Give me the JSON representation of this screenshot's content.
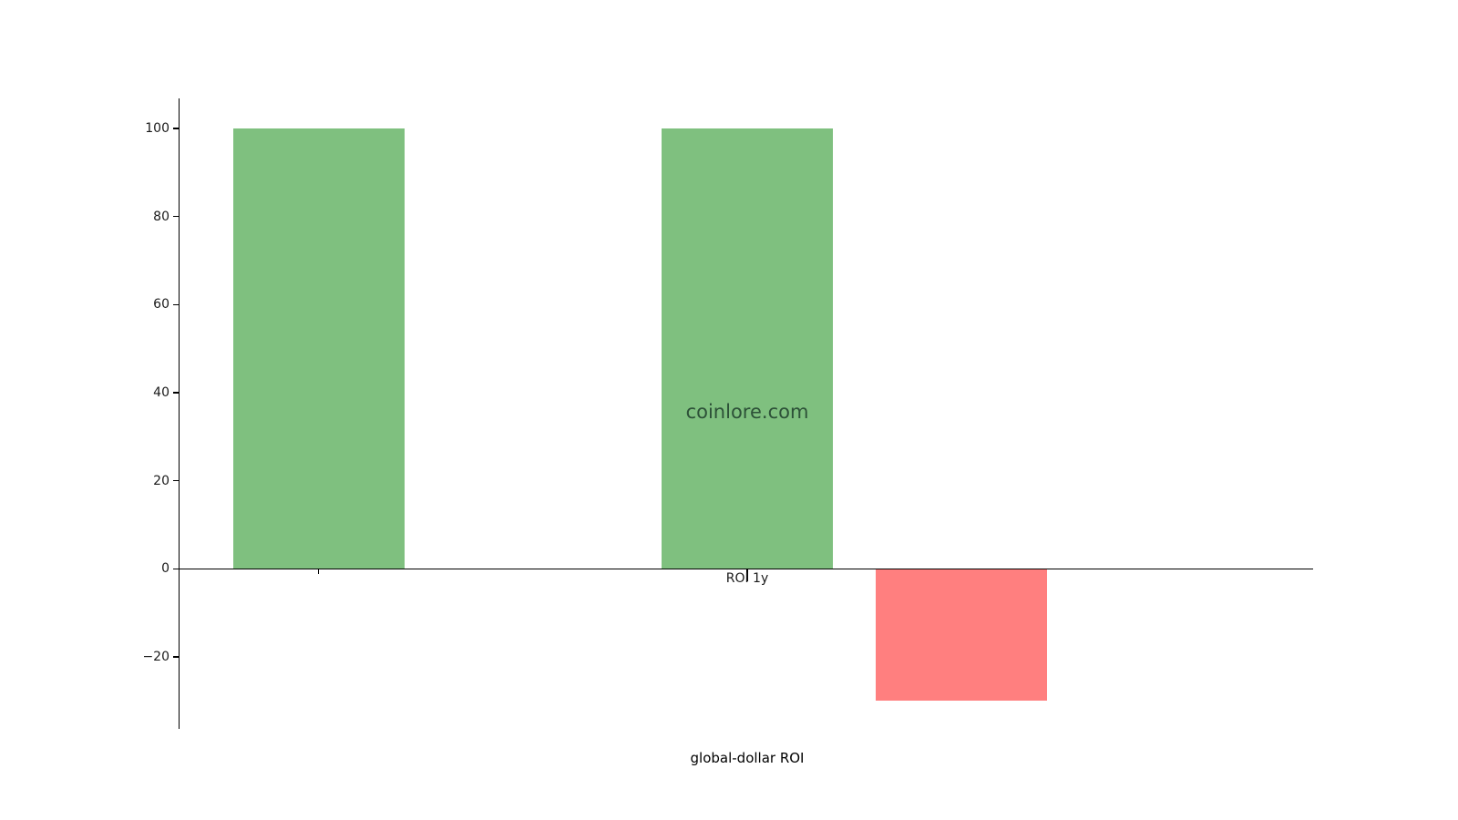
{
  "page": {
    "background": "#ffffff"
  },
  "chart_data": {
    "type": "bar",
    "title": "",
    "xlabel": "global-dollar ROI",
    "ylabel": "",
    "watermark": "coinlore.com",
    "grid": false,
    "legend": false,
    "ylim": [
      -36.5,
      106.5
    ],
    "slots_total": 5,
    "bars": [
      {
        "slot": 0,
        "tick_label": "",
        "value": 100,
        "color": "#7fc07f"
      },
      {
        "slot": 2,
        "tick_label": "ROI 1y",
        "value": 100,
        "color": "#7fc07f"
      },
      {
        "slot": 3,
        "tick_label": "",
        "value": -30,
        "color": "#ff7f7f"
      }
    ],
    "yticks": [
      {
        "value": 100,
        "label": "100"
      },
      {
        "value": 80,
        "label": "80"
      },
      {
        "value": 60,
        "label": "60"
      },
      {
        "value": 40,
        "label": "40"
      },
      {
        "value": 20,
        "label": "20"
      },
      {
        "value": 0,
        "label": "0"
      },
      {
        "value": -20,
        "label": "−20"
      }
    ],
    "xticks": [
      {
        "slot": 0,
        "label": ""
      },
      {
        "slot": 2,
        "label": "ROI 1y"
      }
    ],
    "colors": {
      "positive": "#7fc07f",
      "negative": "#ff7f7f",
      "axis": "#000000",
      "tick_label": "#1a1a1a",
      "watermark": "#2d5138"
    }
  }
}
